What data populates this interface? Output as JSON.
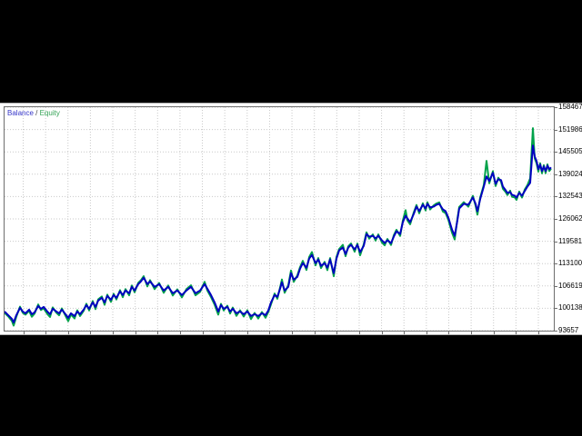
{
  "window": {
    "description_label": "MetaTrader strategy tester balance/equity graph with black letterbox bars"
  },
  "legend": {
    "balance_label": "Balance",
    "separator": " / ",
    "equity_label": "Equity"
  },
  "colors": {
    "balance_line": "#0000bf",
    "equity_line": "#00a24a",
    "balance_text": "#3535c8",
    "equity_text": "#33a355",
    "grid": "#c9c9c9",
    "plot_border": "#6e6e6e",
    "background": "#ffffff",
    "letterbox": "#000000"
  },
  "chart_data": {
    "type": "line",
    "title": "",
    "xlabel": "",
    "ylabel": "",
    "legend_entries": [
      "Balance",
      "Equity"
    ],
    "legend_position": "top-left",
    "grid": "dotted",
    "ylim": [
      93657,
      158467
    ],
    "yticks": [
      "158467",
      "151986",
      "145505",
      "139024",
      "132543",
      "126062",
      "119581",
      "113100",
      "106619",
      "100138",
      "93657"
    ],
    "ytick_interval": 6481,
    "xticks": [],
    "columns": [
      "x_px",
      "balance",
      "equity"
    ],
    "points": [
      [
        0,
        99212,
        98800
      ],
      [
        4,
        98154,
        97800
      ],
      [
        8,
        97096,
        96500
      ],
      [
        10,
        96038,
        95100
      ],
      [
        13,
        98154,
        97750
      ],
      [
        17,
        100270,
        100600
      ],
      [
        20,
        99212,
        98850
      ],
      [
        23,
        98683,
        98300
      ],
      [
        27,
        99741,
        99400
      ],
      [
        30,
        98419,
        97700
      ],
      [
        33,
        98948,
        98600
      ],
      [
        37,
        100799,
        101250
      ],
      [
        40,
        100006,
        99650
      ],
      [
        43,
        100535,
        100150
      ],
      [
        47,
        99212,
        98500
      ],
      [
        50,
        98419,
        97600
      ],
      [
        53,
        100006,
        100400
      ],
      [
        57,
        99212,
        98850
      ],
      [
        60,
        98683,
        98100
      ],
      [
        63,
        99741,
        100100
      ],
      [
        67,
        98419,
        98000
      ],
      [
        70,
        97361,
        96400
      ],
      [
        73,
        98683,
        98330
      ],
      [
        77,
        97890,
        97200
      ],
      [
        80,
        99212,
        99550
      ],
      [
        83,
        98419,
        97900
      ],
      [
        87,
        99741,
        99390
      ],
      [
        90,
        101064,
        101450
      ],
      [
        93,
        100006,
        99500
      ],
      [
        97,
        101858,
        102250
      ],
      [
        100,
        100535,
        99900
      ],
      [
        103,
        102387,
        102750
      ],
      [
        107,
        103180,
        103550
      ],
      [
        110,
        101858,
        101150
      ],
      [
        113,
        103709,
        104100
      ],
      [
        117,
        102651,
        102000
      ],
      [
        120,
        103974,
        104350
      ],
      [
        123,
        103180,
        102700
      ],
      [
        127,
        105032,
        105400
      ],
      [
        130,
        103974,
        103350
      ],
      [
        133,
        105296,
        105700
      ],
      [
        137,
        104503,
        103900
      ],
      [
        140,
        106355,
        106750
      ],
      [
        143,
        105296,
        104800
      ],
      [
        147,
        107148,
        107500
      ],
      [
        150,
        107942,
        108300
      ],
      [
        153,
        109000,
        109450
      ],
      [
        157,
        107148,
        106500
      ],
      [
        160,
        107942,
        108300
      ],
      [
        165,
        106355,
        105700
      ],
      [
        170,
        107148,
        107500
      ],
      [
        175,
        105296,
        104650
      ],
      [
        180,
        106355,
        106750
      ],
      [
        185,
        104503,
        103850
      ],
      [
        190,
        105296,
        105650
      ],
      [
        195,
        103974,
        103300
      ],
      [
        200,
        105296,
        105700
      ],
      [
        205,
        106355,
        106800
      ],
      [
        210,
        104503,
        103900
      ],
      [
        215,
        105296,
        104900
      ],
      [
        220,
        107148,
        107800
      ],
      [
        223,
        105826,
        105300
      ],
      [
        227,
        103974,
        103400
      ],
      [
        231,
        101858,
        101200
      ],
      [
        235,
        99212,
        98300
      ],
      [
        238,
        101064,
        101420
      ],
      [
        241,
        100006,
        99500
      ],
      [
        245,
        100535,
        100900
      ],
      [
        248,
        99212,
        98600
      ],
      [
        251,
        100006,
        100350
      ],
      [
        255,
        98683,
        97950
      ],
      [
        259,
        99212,
        99560
      ],
      [
        263,
        98419,
        97750
      ],
      [
        267,
        99212,
        99560
      ],
      [
        271,
        97890,
        97000
      ],
      [
        275,
        98419,
        98800
      ],
      [
        279,
        97890,
        97150
      ],
      [
        283,
        98683,
        99050
      ],
      [
        287,
        98154,
        97400
      ],
      [
        290,
        99476,
        99050
      ],
      [
        293,
        101858,
        101300
      ],
      [
        297,
        103974,
        104400
      ],
      [
        300,
        103445,
        102900
      ],
      [
        303,
        105826,
        106200
      ],
      [
        305,
        107677,
        108500
      ],
      [
        308,
        105296,
        104650
      ],
      [
        312,
        106355,
        106800
      ],
      [
        315,
        110323,
        111100
      ],
      [
        318,
        108471,
        107800
      ],
      [
        322,
        109264,
        109700
      ],
      [
        325,
        111645,
        112100
      ],
      [
        328,
        113232,
        113900
      ],
      [
        332,
        111910,
        111250
      ],
      [
        335,
        114555,
        115000
      ],
      [
        338,
        115613,
        116450
      ],
      [
        342,
        113232,
        112600
      ],
      [
        345,
        114290,
        114700
      ],
      [
        348,
        112439,
        111800
      ],
      [
        352,
        113232,
        113600
      ],
      [
        355,
        111910,
        111200
      ],
      [
        358,
        114290,
        114700
      ],
      [
        362,
        110323,
        109450
      ],
      [
        365,
        114555,
        115000
      ],
      [
        368,
        116936,
        117350
      ],
      [
        372,
        117729,
        118550
      ],
      [
        375,
        115878,
        115250
      ],
      [
        378,
        117729,
        118100
      ],
      [
        381,
        118523,
        118950
      ],
      [
        385,
        117200,
        116550
      ],
      [
        388,
        118523,
        118900
      ],
      [
        391,
        116407,
        115500
      ],
      [
        395,
        118258,
        118700
      ],
      [
        398,
        121697,
        122150
      ],
      [
        401,
        120904,
        120350
      ],
      [
        405,
        121168,
        121550
      ],
      [
        408,
        120375,
        119800
      ],
      [
        411,
        121168,
        121550
      ],
      [
        415,
        119846,
        119250
      ],
      [
        418,
        119052,
        118400
      ],
      [
        421,
        119846,
        120250
      ],
      [
        425,
        119052,
        118500
      ],
      [
        428,
        120904,
        121300
      ],
      [
        431,
        122491,
        122900
      ],
      [
        435,
        121697,
        121100
      ],
      [
        438,
        125136,
        125600
      ],
      [
        441,
        126988,
        128600
      ],
      [
        443,
        126194,
        125650
      ],
      [
        446,
        125136,
        124500
      ],
      [
        450,
        127517,
        127950
      ],
      [
        453,
        129633,
        130100
      ],
      [
        456,
        128311,
        127700
      ],
      [
        460,
        130162,
        130600
      ],
      [
        463,
        129104,
        128500
      ],
      [
        465,
        130427,
        130900
      ],
      [
        468,
        129369,
        128800
      ],
      [
        472,
        129633,
        130000
      ],
      [
        475,
        130162,
        130550
      ],
      [
        478,
        130427,
        130850
      ],
      [
        482,
        128840,
        128200
      ],
      [
        485,
        128311,
        127750
      ],
      [
        488,
        126459,
        125850
      ],
      [
        492,
        123020,
        122100
      ],
      [
        495,
        121168,
        120100
      ],
      [
        498,
        125665,
        126100
      ],
      [
        500,
        129104,
        129550
      ],
      [
        505,
        130427,
        130900
      ],
      [
        510,
        130162,
        129600
      ],
      [
        515,
        132279,
        132750
      ],
      [
        518,
        130427,
        129850
      ],
      [
        520,
        128311,
        127300
      ],
      [
        523,
        131749,
        132200
      ],
      [
        527,
        135453,
        135900
      ],
      [
        530,
        138363,
        142900
      ],
      [
        533,
        137040,
        136400
      ],
      [
        537,
        139421,
        139900
      ],
      [
        540,
        136246,
        135600
      ],
      [
        543,
        137569,
        138000
      ],
      [
        546,
        137305,
        136800
      ],
      [
        548,
        135453,
        134800
      ],
      [
        551,
        134395,
        133850
      ],
      [
        553,
        133601,
        133000
      ],
      [
        556,
        133866,
        134250
      ],
      [
        558,
        133072,
        132500
      ],
      [
        561,
        132808,
        132300
      ],
      [
        563,
        132279,
        131600
      ],
      [
        566,
        133601,
        134000
      ],
      [
        569,
        132808,
        132250
      ],
      [
        572,
        134130,
        134550
      ],
      [
        575,
        135453,
        135900
      ],
      [
        578,
        136510,
        137800
      ],
      [
        581,
        147357,
        152380
      ],
      [
        583,
        144182,
        143600
      ],
      [
        585,
        142860,
        142200
      ],
      [
        587,
        140479,
        139800
      ],
      [
        589,
        141802,
        142200
      ],
      [
        591,
        139950,
        139300
      ],
      [
        593,
        141273,
        141650
      ],
      [
        595,
        139950,
        139350
      ],
      [
        597,
        141537,
        141900
      ],
      [
        599,
        140479,
        139950
      ],
      [
        601,
        141008,
        140600
      ]
    ]
  }
}
